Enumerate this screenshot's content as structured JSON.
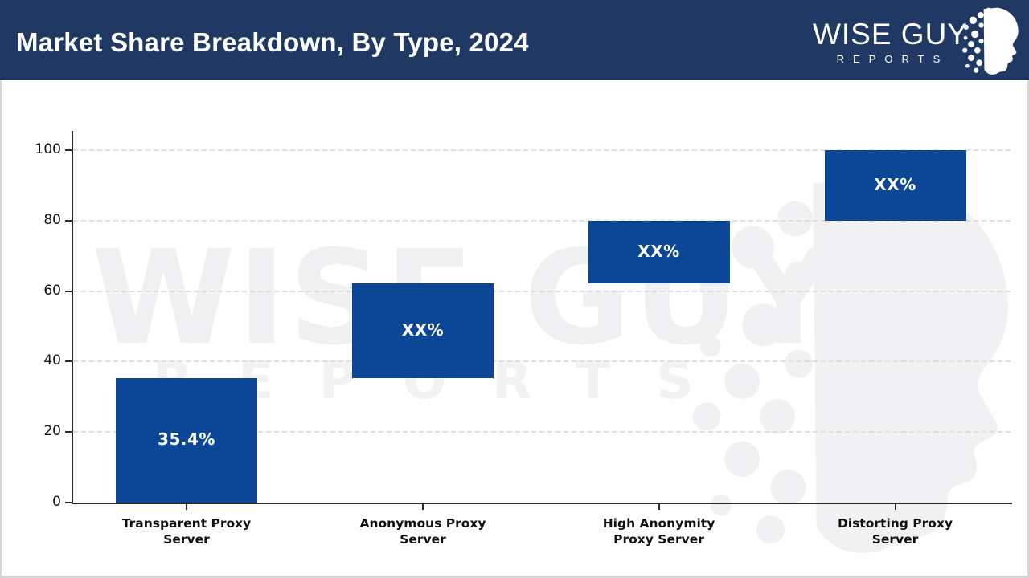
{
  "header": {
    "title": "Market Share Breakdown, By Type, 2024",
    "logo": {
      "brand": "WISE GUY",
      "sub": "REPORTS"
    }
  },
  "watermark": {
    "brand": "WISE GUY",
    "sub": "REPORTS"
  },
  "chart_data": {
    "type": "bar",
    "subtype": "waterfall-floating-bars",
    "title": "Market Share Breakdown, By Type, 2024",
    "categories": [
      {
        "line1": "Transparent Proxy",
        "line2": "Server"
      },
      {
        "line1": "Anonymous Proxy",
        "line2": "Server"
      },
      {
        "line1": "High Anonymity",
        "line2": "Proxy Server"
      },
      {
        "line1": "Distorting Proxy",
        "line2": "Server"
      }
    ],
    "segments": [
      {
        "start": 0,
        "end": 35.4,
        "label": "35.4%"
      },
      {
        "start": 35.4,
        "end": 62.2,
        "label": "XX%"
      },
      {
        "start": 62.2,
        "end": 80,
        "label": "XX%"
      },
      {
        "start": 80,
        "end": 100,
        "label": "XX%"
      }
    ],
    "ylim": [
      0,
      100
    ],
    "yticks": [
      0,
      20,
      40,
      60,
      80,
      100
    ],
    "xlabel": "",
    "ylabel": "",
    "grid": "horizontal-dashed",
    "legend": "none",
    "bar_color": "#0b4796",
    "bar_label_color": "#ffffff",
    "axis_color": "#2b2b2b",
    "grid_color": "#dedede",
    "header_bg": "#1f3864",
    "border_color": "#d6d6d6"
  }
}
